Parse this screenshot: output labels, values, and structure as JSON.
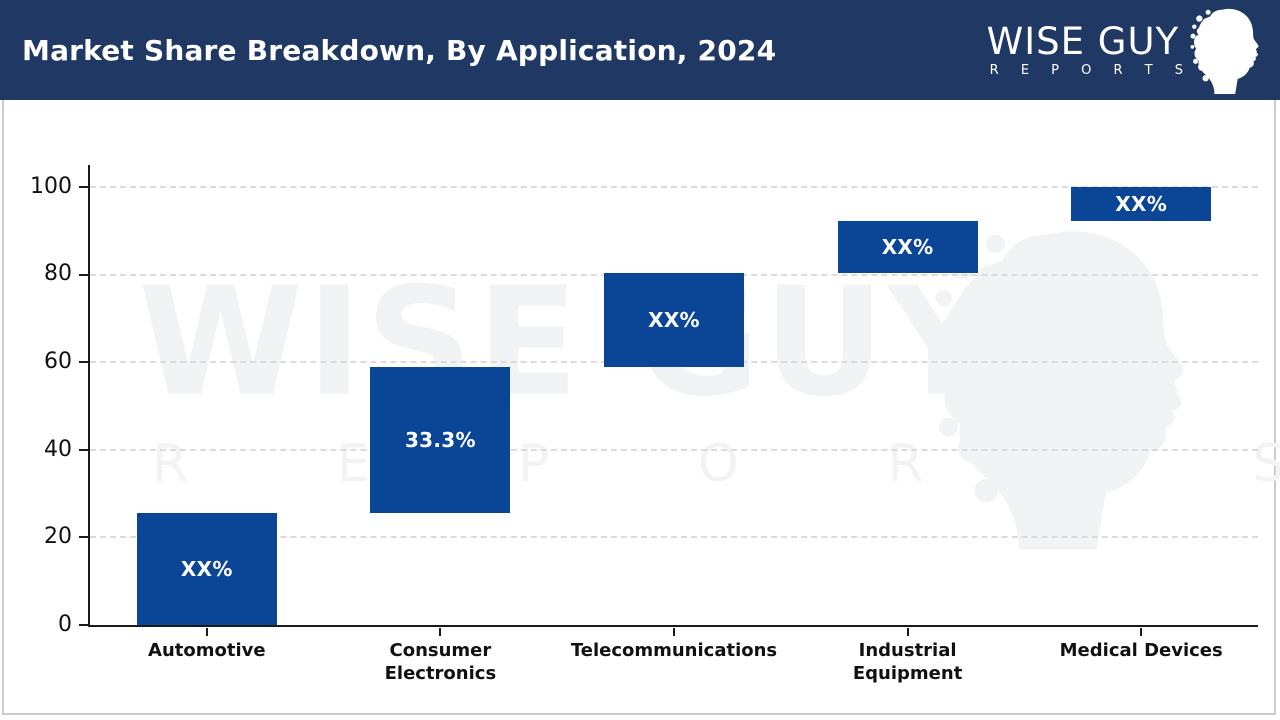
{
  "header": {
    "title": "Market Share Breakdown, By Application, 2024",
    "logo": {
      "wordmark": "WISE GUY",
      "subtext": "R E P O R T S"
    }
  },
  "watermark": {
    "wordmark": "WISE GUY",
    "subtext": "R E P O R T S"
  },
  "colors": {
    "header_bg": "#1F3864",
    "bar_blue": "#0B4596",
    "grid": "#DBDBDB",
    "axis": "#1A1A1A",
    "watermark": "#F2F3F5"
  },
  "chart_data": {
    "type": "bar",
    "subtype": "floating-waterfall",
    "title": "Market Share Breakdown, By Application, 2024",
    "xlabel": "",
    "ylabel": "",
    "ylim": [
      0,
      105
    ],
    "yticks": [
      0,
      20,
      40,
      60,
      80,
      100
    ],
    "grid": "horizontal-dashed",
    "legend": "none",
    "bar_color": "#0B4596",
    "label_color": "#FFFFFF",
    "categories": [
      "Automotive",
      "Consumer Electronics",
      "Telecommunications",
      "Industrial Equipment",
      "Medical Devices"
    ],
    "bars": [
      {
        "category": "Automotive",
        "tick_label": "Automotive",
        "start": 0,
        "end": 25.5,
        "value_label": "XX%"
      },
      {
        "category": "Consumer Electronics",
        "tick_label": "Consumer\nElectronics",
        "start": 25.5,
        "end": 58.8,
        "value_label": "33.3%"
      },
      {
        "category": "Telecommunications",
        "tick_label": "Telecommunications",
        "start": 58.8,
        "end": 80.4,
        "value_label": "XX%"
      },
      {
        "category": "Industrial Equipment",
        "tick_label": "Industrial\nEquipment",
        "start": 80.4,
        "end": 92.3,
        "value_label": "XX%"
      },
      {
        "category": "Medical Devices",
        "tick_label": "Medical Devices",
        "start": 92.3,
        "end": 100,
        "value_label": "XX%"
      }
    ]
  }
}
